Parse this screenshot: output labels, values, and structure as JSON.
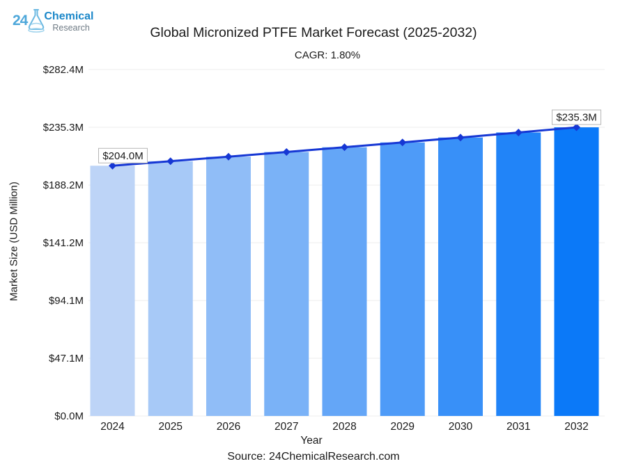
{
  "logo": {
    "number": "24",
    "name_top": "Chemical",
    "name_bottom": "Research"
  },
  "title": "Global Micronized PTFE Market Forecast (2025-2032)",
  "subtitle": "CAGR: 1.80%",
  "source": "Source: 24ChemicalResearch.com",
  "chart_data": {
    "type": "bar",
    "title": "Global Micronized PTFE Market Forecast (2025-2032)",
    "subtitle": "CAGR: 1.80%",
    "xlabel": "Year",
    "ylabel": "Market Size (USD Million)",
    "categories": [
      "2024",
      "2025",
      "2026",
      "2027",
      "2028",
      "2029",
      "2030",
      "2031",
      "2032"
    ],
    "series": [
      {
        "name": "Market Size (USD Million)",
        "type": "bar",
        "values": [
          204.0,
          207.7,
          211.4,
          215.2,
          219.1,
          223.0,
          227.0,
          231.1,
          235.3
        ]
      },
      {
        "name": "Trend",
        "type": "line",
        "values": [
          204.0,
          207.7,
          211.4,
          215.2,
          219.1,
          223.0,
          227.0,
          231.1,
          235.3
        ]
      }
    ],
    "ylim": [
      0,
      282.4
    ],
    "yticks": [
      {
        "value": 0.0,
        "label": "$0.0M"
      },
      {
        "value": 47.1,
        "label": "$47.1M"
      },
      {
        "value": 94.1,
        "label": "$94.1M"
      },
      {
        "value": 141.2,
        "label": "$141.2M"
      },
      {
        "value": 188.2,
        "label": "$188.2M"
      },
      {
        "value": 235.3,
        "label": "$235.3M"
      },
      {
        "value": 282.4,
        "label": "$282.4M"
      }
    ],
    "annotations": [
      {
        "index": 0,
        "label": "$204.0M"
      },
      {
        "index": 8,
        "label": "$235.3M"
      }
    ],
    "bar_colors": [
      "#bdd4f7",
      "#a7c9f7",
      "#90bdf7",
      "#7ab2f7",
      "#64a6f7",
      "#4e9bf8",
      "#3890f8",
      "#2184f8",
      "#0b79f8"
    ],
    "line_color": "#1637d4",
    "grid": true,
    "grid_color": "#ededed",
    "legend": "none"
  }
}
